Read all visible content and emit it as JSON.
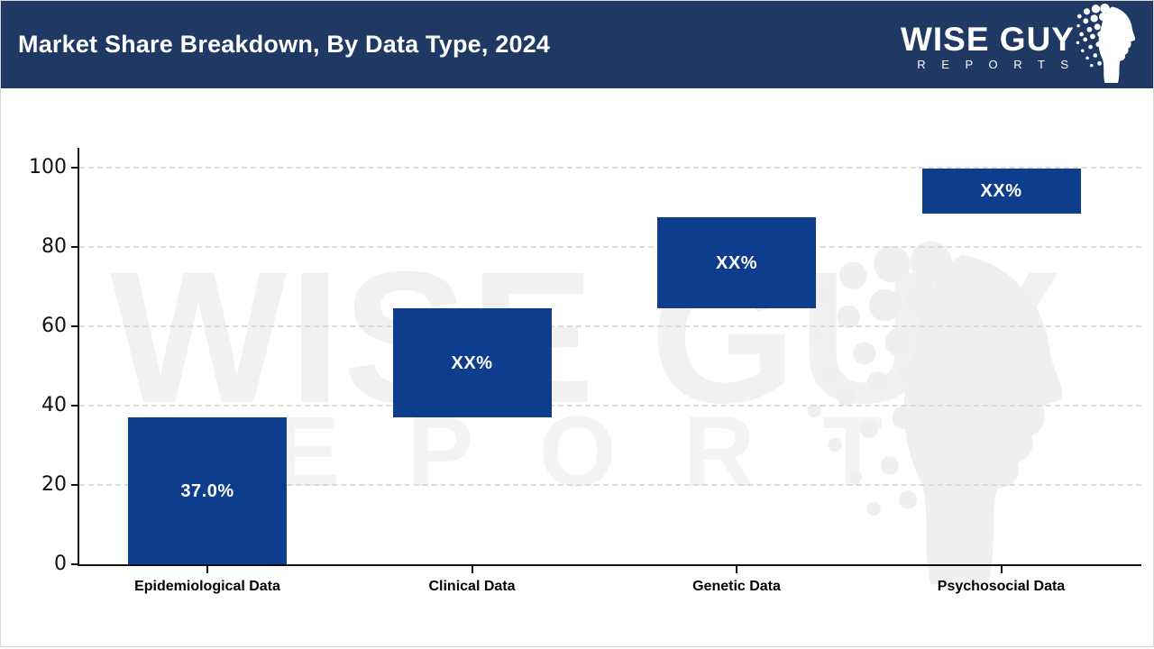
{
  "header": {
    "title": "Market Share Breakdown, By Data Type, 2024",
    "background_color": "#1f3864",
    "logo": {
      "line1": "WISE GUY",
      "line2": "R E P O R T S"
    }
  },
  "watermark": {
    "line1": "WISE GUY",
    "line2": "R E P O R T S",
    "color": "#f1f1f1"
  },
  "chart_data": {
    "type": "bar",
    "subtype": "waterfall",
    "title": "Market Share Breakdown, By Data Type, 2024",
    "xlabel": "",
    "ylabel": "",
    "ylim": [
      0,
      105
    ],
    "yticks": [
      0,
      20,
      40,
      60,
      80,
      100
    ],
    "grid": "horizontal-dashed",
    "bar_color": "#0d3d8c",
    "label_color": "#ffffff",
    "categories": [
      "Epidemiological Data",
      "Clinical Data",
      "Genetic Data",
      "Psychosocial Data"
    ],
    "series": [
      {
        "name": "Market Share (%)",
        "segments": [
          {
            "start": 0,
            "end": 37.0,
            "label": "37.0%"
          },
          {
            "start": 37.0,
            "end": 64.5,
            "label": "XX%"
          },
          {
            "start": 64.5,
            "end": 87.5,
            "label": "XX%"
          },
          {
            "start": 88.3,
            "end": 99.8,
            "label": "XX%"
          }
        ]
      }
    ]
  }
}
